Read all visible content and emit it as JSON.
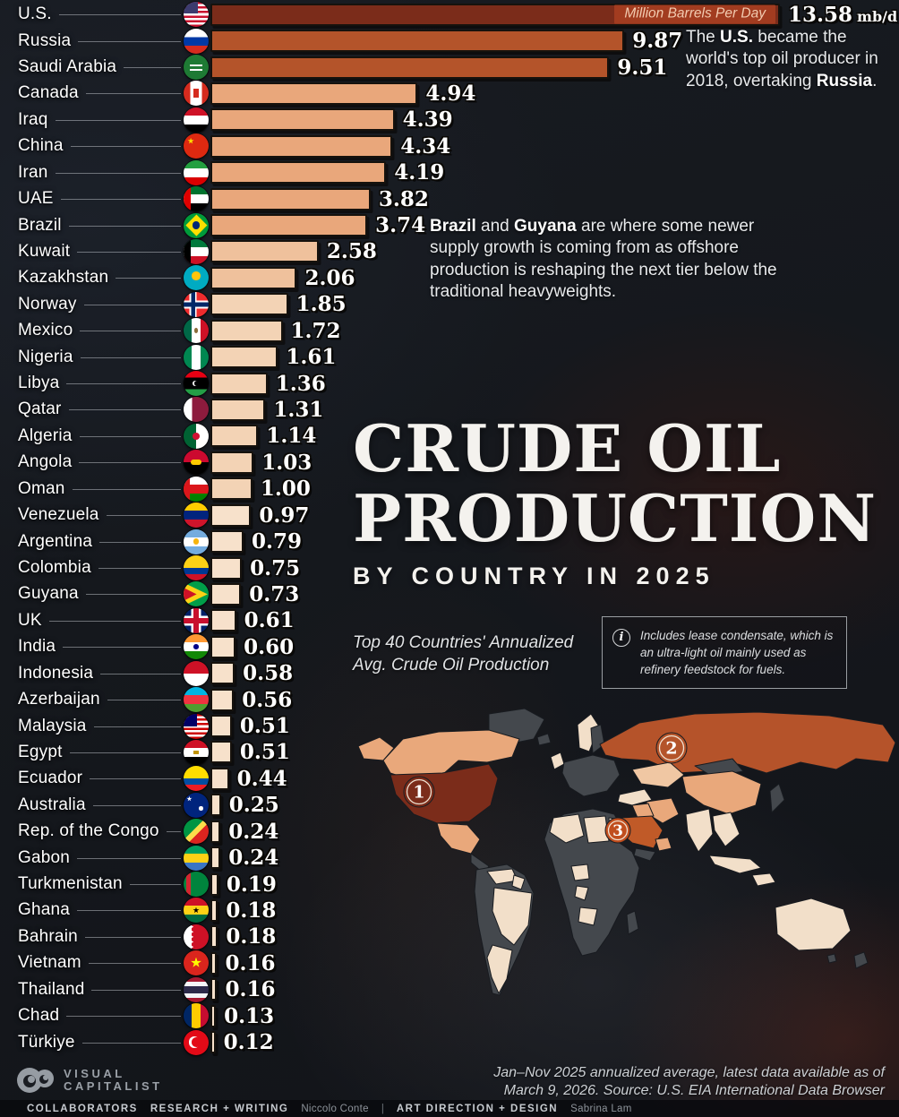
{
  "header": {
    "axis_label": "Million Barrels Per Day",
    "top_unit": "mb/d"
  },
  "chart_data": {
    "type": "bar",
    "orientation": "horizontal",
    "title": "CRUDE OIL PRODUCTION",
    "subtitle": "BY COUNTRY IN 2025",
    "caption": "Top 40 Countries' Annualized Avg. Crude Oil Production",
    "unit": "Million Barrels Per Day",
    "xlim": [
      0,
      13.58
    ],
    "categories": [
      "U.S.",
      "Russia",
      "Saudi Arabia",
      "Canada",
      "Iraq",
      "China",
      "Iran",
      "UAE",
      "Brazil",
      "Kuwait",
      "Kazakhstan",
      "Norway",
      "Mexico",
      "Nigeria",
      "Libya",
      "Qatar",
      "Algeria",
      "Angola",
      "Oman",
      "Venezuela",
      "Argentina",
      "Colombia",
      "Guyana",
      "UK",
      "India",
      "Indonesia",
      "Azerbaijan",
      "Malaysia",
      "Egypt",
      "Ecuador",
      "Australia",
      "Rep. of the Congo",
      "Gabon",
      "Turkmenistan",
      "Ghana",
      "Bahrain",
      "Vietnam",
      "Thailand",
      "Chad",
      "Türkiye"
    ],
    "values": [
      13.58,
      9.87,
      9.51,
      4.94,
      4.39,
      4.34,
      4.19,
      3.82,
      3.74,
      2.58,
      2.06,
      1.85,
      1.72,
      1.61,
      1.36,
      1.31,
      1.14,
      1.03,
      1.0,
      0.97,
      0.79,
      0.75,
      0.73,
      0.61,
      0.6,
      0.58,
      0.56,
      0.51,
      0.51,
      0.44,
      0.25,
      0.24,
      0.24,
      0.19,
      0.18,
      0.18,
      0.16,
      0.16,
      0.13,
      0.12
    ],
    "flags": [
      "us",
      "ru",
      "sa",
      "ca",
      "iq",
      "cn",
      "ir",
      "ae",
      "br",
      "kw",
      "kz",
      "no",
      "mx",
      "ng",
      "ly",
      "qa",
      "dz",
      "ao",
      "om",
      "ve",
      "ar",
      "co",
      "gy",
      "gb",
      "in",
      "id",
      "az",
      "my",
      "eg",
      "ec",
      "au",
      "cg",
      "ga",
      "tm",
      "gh",
      "bh",
      "vn",
      "th",
      "td",
      "tr"
    ]
  },
  "annotations": {
    "us_note": [
      {
        "text": "The ",
        "bold": false
      },
      {
        "text": "U.S.",
        "bold": true
      },
      {
        "text": " became the world's top oil producer in 2018, overtaking ",
        "bold": false
      },
      {
        "text": "Russia",
        "bold": true
      },
      {
        "text": ".",
        "bold": false
      }
    ],
    "supply_note": [
      {
        "text": "Brazil",
        "bold": true
      },
      {
        "text": " and ",
        "bold": false
      },
      {
        "text": "Guyana",
        "bold": true
      },
      {
        "text": " are where some newer supply growth is coming from as offshore production is reshaping the next tier below the traditional heavyweights.",
        "bold": false
      }
    ]
  },
  "info_box": "Includes lease condensate, which is an ultra-light oil mainly used as refinery feedstock for fuels.",
  "map": {
    "markers": [
      {
        "n": "1",
        "country": "U.S."
      },
      {
        "n": "2",
        "country": "Russia"
      },
      {
        "n": "3",
        "country": "Saudi Arabia"
      }
    ]
  },
  "source_line1": "Jan–Nov 2025 annualized average, latest data available as of",
  "source_line2": "March 9, 2026. Source: U.S. EIA International Data Browser",
  "logo": {
    "line1": "VISUAL",
    "line2": "CAPITALIST"
  },
  "footer": {
    "collaborators": "COLLABORATORS",
    "rw_label": "RESEARCH + WRITING",
    "rw_name": "Niccolo Conte",
    "pipe": "|",
    "ad_label": "ART DIRECTION + DESIGN",
    "ad_name": "Sabrina Lam"
  },
  "colors": {
    "tier_top": "#7b2c1a",
    "tier_9": "#b4542a",
    "tier_4": "#e9a77b",
    "tier_2": "#efc19c",
    "tier_1": "#f3d3b5",
    "tier_sub1": "#f7e1cb",
    "map_gray": "#44484d",
    "map_cream": "#f2dfc9",
    "map_salmon": "#e9a87b",
    "map_light_salmon": "#f0c7a3",
    "background": "#171a20"
  }
}
